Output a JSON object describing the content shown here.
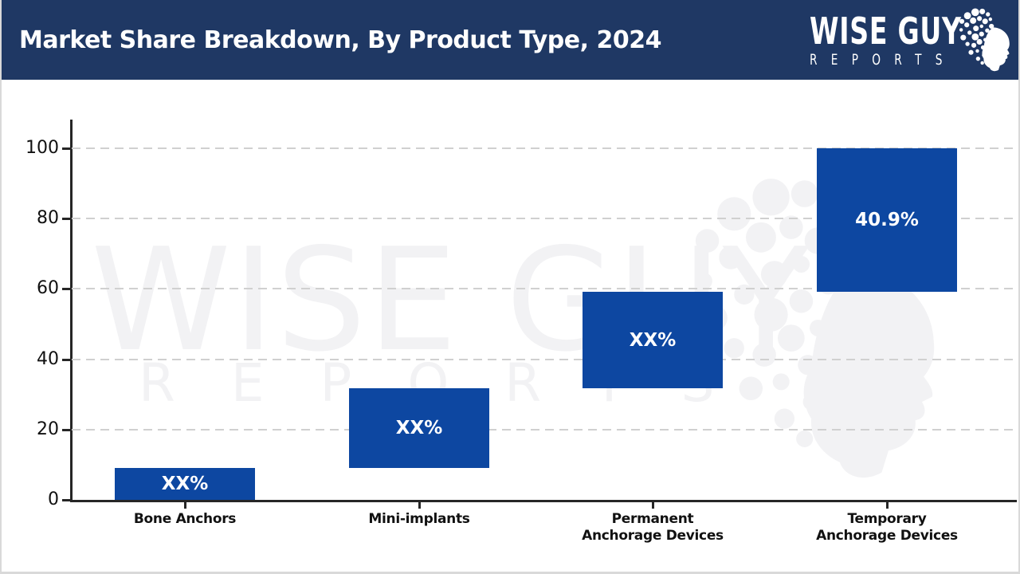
{
  "header": {
    "title": "Market Share Breakdown, By Product Type, 2024",
    "logo": {
      "line1": "WISE GUY",
      "line2": "REPORTS"
    }
  },
  "watermark": {
    "line1": "WISE GUY",
    "line2": "REPORTS"
  },
  "colors": {
    "header_bg": "#1f3864",
    "bar_blue": "#0d47a1",
    "grid_gray": "#d0d0d0",
    "axis_dark": "#262626",
    "watermark_gray": "#f2f2f4",
    "border_gray": "#d9d9d9"
  },
  "chart_data": {
    "type": "bar",
    "subtype": "floating-waterfall",
    "title": "Market Share Breakdown, By Product Type, 2024",
    "categories": [
      "Bone Anchors",
      "Mini-implants",
      "Permanent\nAnchorage Devices",
      "Temporary\nAnchorage Devices"
    ],
    "segments": [
      {
        "category": "Bone Anchors",
        "start": 0,
        "end": 9.1,
        "label": "XX%"
      },
      {
        "category": "Mini-implants",
        "start": 9.1,
        "end": 31.8,
        "label": "XX%"
      },
      {
        "category": "Permanent Anchorage Devices",
        "start": 31.8,
        "end": 59.1,
        "label": "XX%"
      },
      {
        "category": "Temporary Anchorage Devices",
        "start": 59.1,
        "end": 100,
        "label": "40.9%"
      }
    ],
    "ylim": [
      0,
      100
    ],
    "yticks": [
      0,
      20,
      40,
      60,
      80,
      100
    ],
    "xlabel": "",
    "ylabel": "",
    "grid": "horizontal-dashed",
    "legend": "none",
    "bar_color": "#0d47a1",
    "bar_label_color": "#ffffff"
  }
}
